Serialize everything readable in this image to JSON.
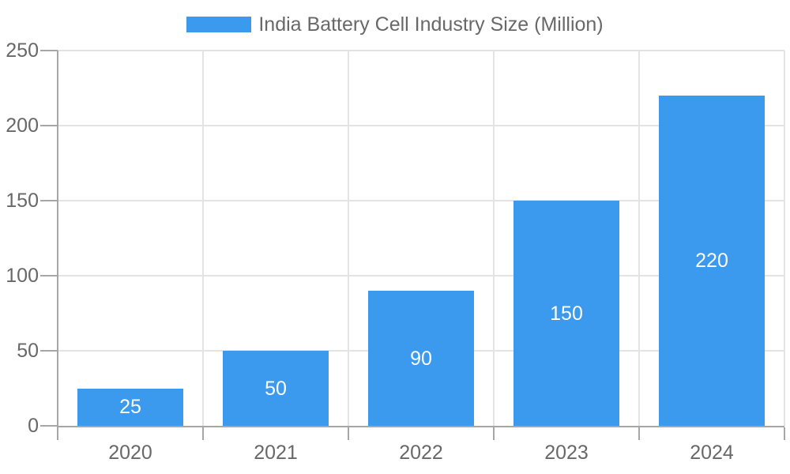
{
  "chart_data": {
    "type": "bar",
    "legend": "India Battery Cell Industry Size (Million)",
    "categories": [
      "2020",
      "2021",
      "2022",
      "2023",
      "2024"
    ],
    "values": [
      25,
      50,
      90,
      150,
      220
    ],
    "ylim": [
      0,
      250
    ],
    "yticks": [
      0,
      50,
      100,
      150,
      200,
      250
    ],
    "grid": true,
    "legend_position": "top",
    "colors": {
      "bar": "#3b99ee",
      "axis": "#a6a6a6",
      "grid": "#e3e3e3",
      "tick_label": "#686868",
      "bar_label": "#ffffff",
      "background": "#ffffff"
    }
  }
}
